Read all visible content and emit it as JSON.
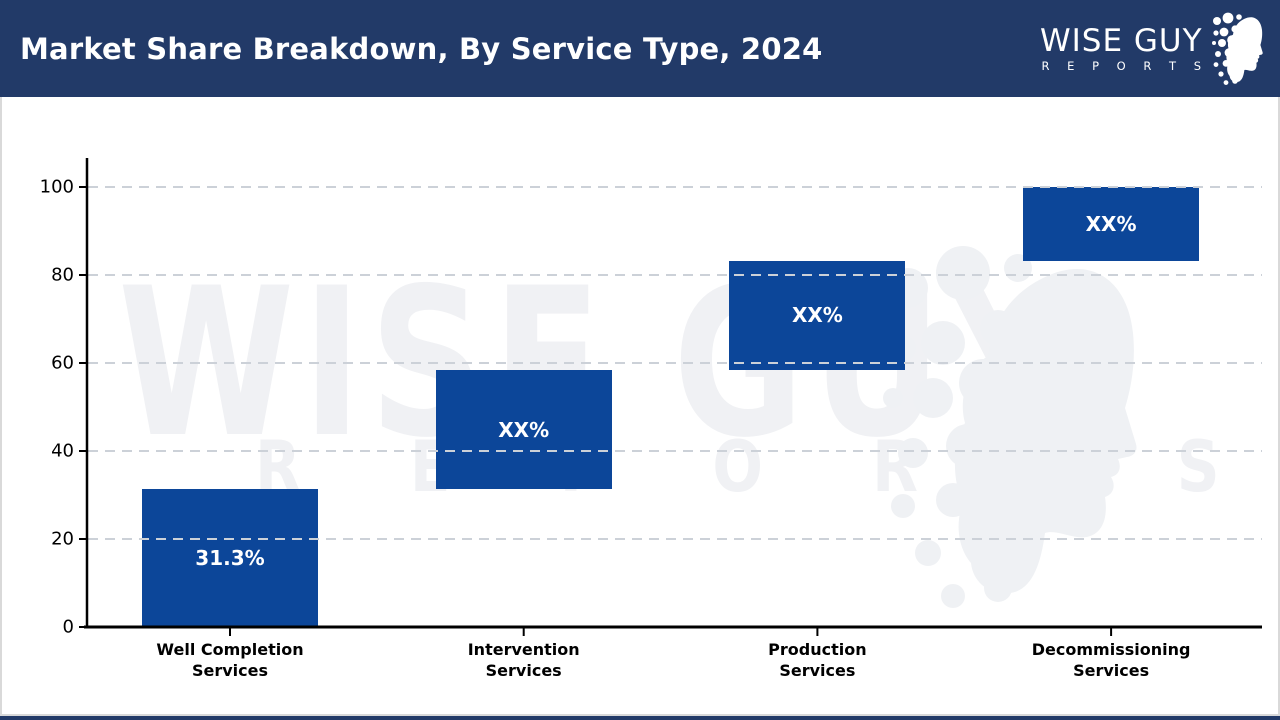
{
  "header": {
    "title": "Market Share Breakdown, By Service Type, 2024",
    "bg_color": "#223a68",
    "logo": {
      "line1": "WISE GUY",
      "line2": "R E P O R T S"
    }
  },
  "watermark": {
    "line1": "WISE GUY",
    "line2": "R E P O R T S"
  },
  "chart_data": {
    "type": "bar",
    "subtype": "floating-waterfall",
    "title": "Market Share Breakdown, By Service Type, 2024",
    "xlabel": "",
    "ylabel": "",
    "categories": [
      [
        "Well Completion",
        "Services"
      ],
      [
        "Intervention",
        "Services"
      ],
      [
        "Production",
        "Services"
      ],
      [
        "Decommissioning",
        "Services"
      ]
    ],
    "bars": [
      {
        "from": 0,
        "to": 31.3,
        "label": "31.3%"
      },
      {
        "from": 31.3,
        "to": 58.4,
        "label": "XX%"
      },
      {
        "from": 58.4,
        "to": 83.2,
        "label": "XX%"
      },
      {
        "from": 83.2,
        "to": 100,
        "label": "XX%"
      }
    ],
    "ylim": [
      0,
      100
    ],
    "yticks": [
      0,
      20,
      40,
      60,
      80,
      100
    ],
    "grid": "horizontal-dashed-over-bars",
    "legend": "none",
    "bar_color": "#0c4699",
    "bar_label_color": "#ffffff",
    "gridline_color": "#ccd1d8",
    "axis_color": "#000000"
  }
}
